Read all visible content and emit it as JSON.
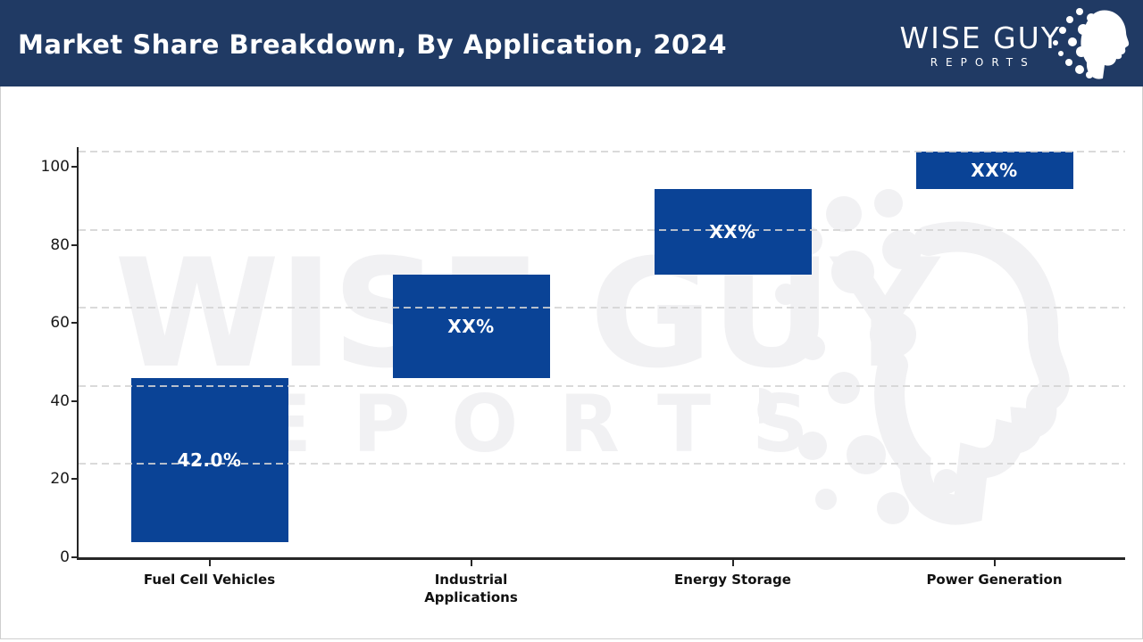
{
  "header": {
    "title": "Market Share Breakdown, By Application, 2024",
    "bg_color": "#203A64",
    "logo": {
      "name": "WISE GUY",
      "sub": "REPORTS"
    }
  },
  "watermark": {
    "name": "WISE GUY",
    "sub": "REPORTS"
  },
  "chart_data": {
    "type": "bar",
    "subtype": "waterfall",
    "title": "Market Share Breakdown, By Application, 2024",
    "categories": [
      "Fuel Cell Vehicles",
      "Industrial Applications",
      "Energy Storage",
      "Power Generation"
    ],
    "category_label_lines": [
      [
        "Fuel Cell Vehicles"
      ],
      [
        "Industrial",
        "Applications"
      ],
      [
        "Energy Storage"
      ],
      [
        "Power Generation"
      ]
    ],
    "segments": [
      {
        "category": "Fuel Cell Vehicles",
        "start": 0,
        "end": 42,
        "label": "42.0%"
      },
      {
        "category": "Industrial Applications",
        "start": 42,
        "end": 68.5,
        "label": "XX%"
      },
      {
        "category": "Energy Storage",
        "start": 68.5,
        "end": 90.5,
        "label": "XX%"
      },
      {
        "category": "Power Generation",
        "start": 90.5,
        "end": 100,
        "label": "XX%"
      }
    ],
    "ylim": [
      0,
      100
    ],
    "yticks": [
      0,
      20,
      40,
      60,
      80,
      100
    ],
    "grid": {
      "axis": "y",
      "style": "dashed",
      "color": "#d9d9d9",
      "drawn_over_bars": true
    },
    "bar_color": "#0A4396",
    "bar_label_color": "#ffffff",
    "axis_color": "#262626",
    "legend_position": "none"
  }
}
